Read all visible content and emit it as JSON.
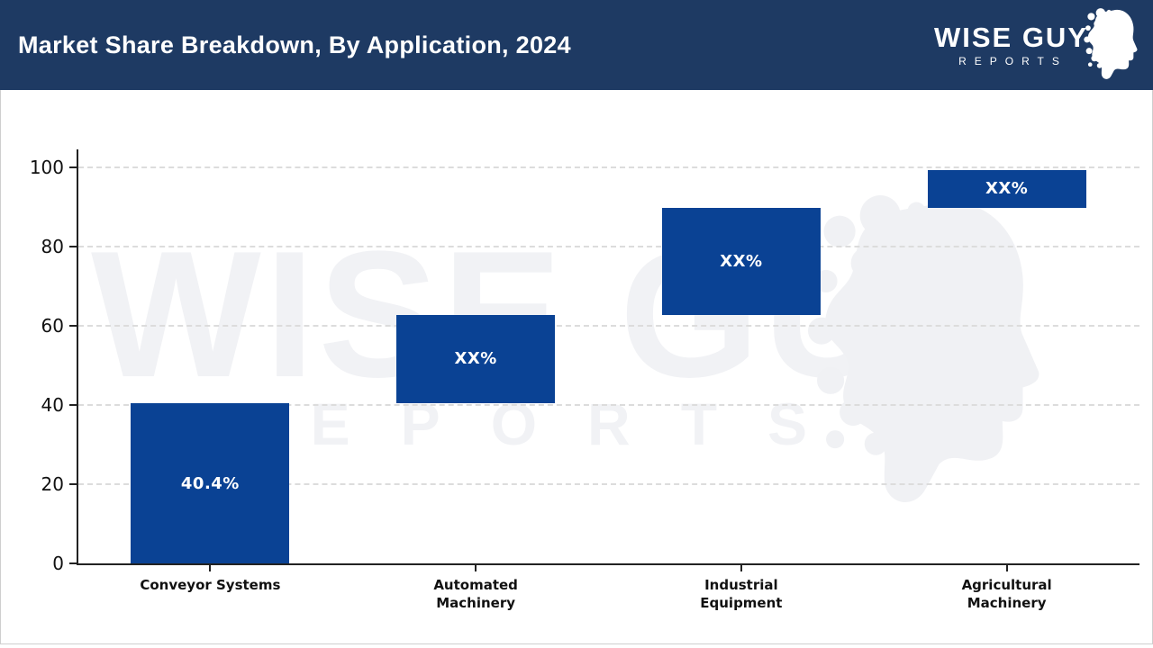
{
  "header": {
    "title": "Market Share Breakdown, By Application, 2024",
    "background": "#1e3a63",
    "logo": {
      "brand_top": "WISE GUY",
      "brand_bottom": "REPORTS"
    }
  },
  "watermark": {
    "brand_top": "WISE GUY",
    "brand_bottom": "REPORTS"
  },
  "chart_data": {
    "type": "bar",
    "subtype": "waterfall-floating-bars",
    "title": "Market Share Breakdown, By Application, 2024",
    "categories": [
      "Conveyor Systems",
      "Automated Machinery",
      "Industrial Equipment",
      "Agricultural Machinery"
    ],
    "category_lines": [
      [
        "Conveyor Systems"
      ],
      [
        "Automated",
        "Machinery"
      ],
      [
        "Industrial",
        "Equipment"
      ],
      [
        "Agricultural",
        "Machinery"
      ]
    ],
    "bars": [
      {
        "category": "Conveyor Systems",
        "start": 0,
        "end": 40.4,
        "label": "40.4%"
      },
      {
        "category": "Automated Machinery",
        "start": 40.4,
        "end": 62.8,
        "label": "XX%"
      },
      {
        "category": "Industrial Equipment",
        "start": 62.8,
        "end": 89.8,
        "label": "XX%"
      },
      {
        "category": "Agricultural Machinery",
        "start": 89.8,
        "end": 99.4,
        "label": "XX%"
      }
    ],
    "yticks": [
      0,
      20,
      40,
      60,
      80,
      100
    ],
    "ylim": [
      0,
      105
    ],
    "xlabel": "",
    "ylabel": "",
    "legend": "none",
    "grid": {
      "show": true,
      "style": "dashed",
      "color": "#dcdcdc"
    },
    "colors": {
      "bar": "#0a4294",
      "value_label": "#ffffff",
      "axis": "#222222",
      "tick_label": "#111111"
    }
  }
}
